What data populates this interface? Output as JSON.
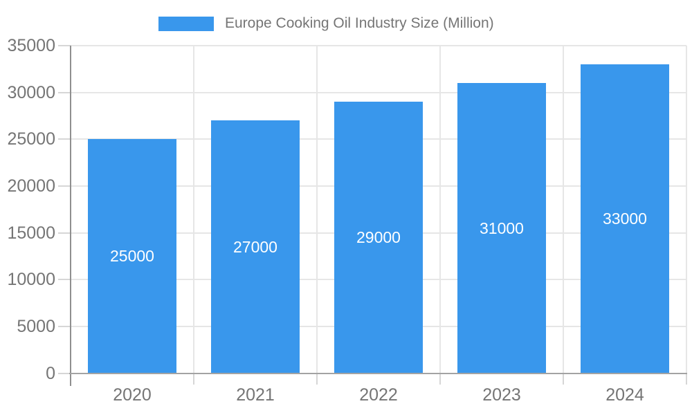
{
  "legend": {
    "label": "Europe Cooking Oil Industry Size (Million)"
  },
  "colors": {
    "bar": "#3997EC",
    "grid": "#E6E6E6",
    "axis": "#8F8F8F",
    "baseline": "#A3A3A3",
    "tick": "#D6D6D6",
    "text": "#757575",
    "bar_label": "#FFFFFF",
    "background": "#FFFFFF"
  },
  "chart_data": {
    "type": "bar",
    "title": "Europe Cooking Oil Industry Size (Million)",
    "series_name": "Europe Cooking Oil Industry Size (Million)",
    "categories": [
      "2020",
      "2021",
      "2022",
      "2023",
      "2024"
    ],
    "values": [
      25000,
      27000,
      29000,
      31000,
      33000
    ],
    "bar_labels": [
      "25000",
      "27000",
      "29000",
      "31000",
      "33000"
    ],
    "ytick_labels": [
      "0",
      "5000",
      "10000",
      "15000",
      "20000",
      "25000",
      "30000",
      "35000"
    ],
    "yticks": [
      0,
      5000,
      10000,
      15000,
      20000,
      25000,
      30000,
      35000
    ],
    "ylim": [
      0,
      35000
    ],
    "xlabel": "",
    "ylabel": "",
    "grid": true,
    "legend_position": "top",
    "bar_label_position": "middle-inside"
  }
}
